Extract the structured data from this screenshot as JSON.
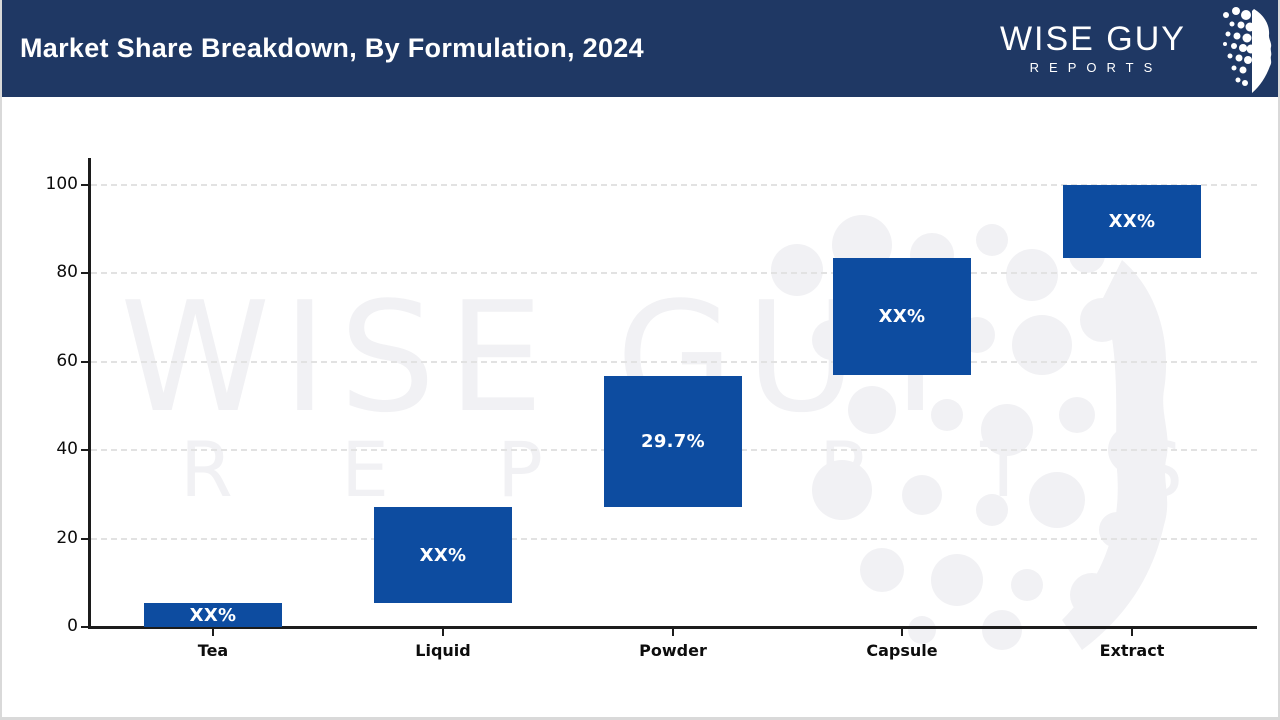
{
  "header": {
    "title": "Market Share Breakdown, By Formulation, 2024",
    "logo_line1": "WISE GUY",
    "logo_line2": "REPORTS"
  },
  "watermark": {
    "line1": "WISE GUY",
    "line2": "R E P O R T S"
  },
  "chart_data": {
    "type": "bar",
    "subtype": "waterfall",
    "title": "Market Share Breakdown, By Formulation, 2024",
    "categories": [
      "Tea",
      "Liquid",
      "Powder",
      "Capsule",
      "Extract"
    ],
    "segments": [
      {
        "category": "Tea",
        "start": 0,
        "end": 5.5,
        "label": "XX%"
      },
      {
        "category": "Liquid",
        "start": 5.5,
        "end": 27.2,
        "label": "XX%"
      },
      {
        "category": "Powder",
        "start": 27.2,
        "end": 56.9,
        "label": "29.7%"
      },
      {
        "category": "Capsule",
        "start": 56.9,
        "end": 83.4,
        "label": "XX%"
      },
      {
        "category": "Extract",
        "start": 83.4,
        "end": 100,
        "label": "XX%"
      }
    ],
    "xlabel": "",
    "ylabel": "",
    "ylim": [
      0,
      100
    ],
    "yticks": [
      0,
      20,
      40,
      60,
      80,
      100
    ],
    "grid": "horizontal-dashed",
    "legend": "none",
    "bar_color": "#0d4ca0"
  },
  "colors": {
    "header_bg": "#1f3864",
    "bar": "#0d4ca0",
    "axis": "#1c1c1c",
    "gridline": "#e2e2e2",
    "watermark": "#f1f1f4",
    "page_border": "#d9d9d9"
  }
}
